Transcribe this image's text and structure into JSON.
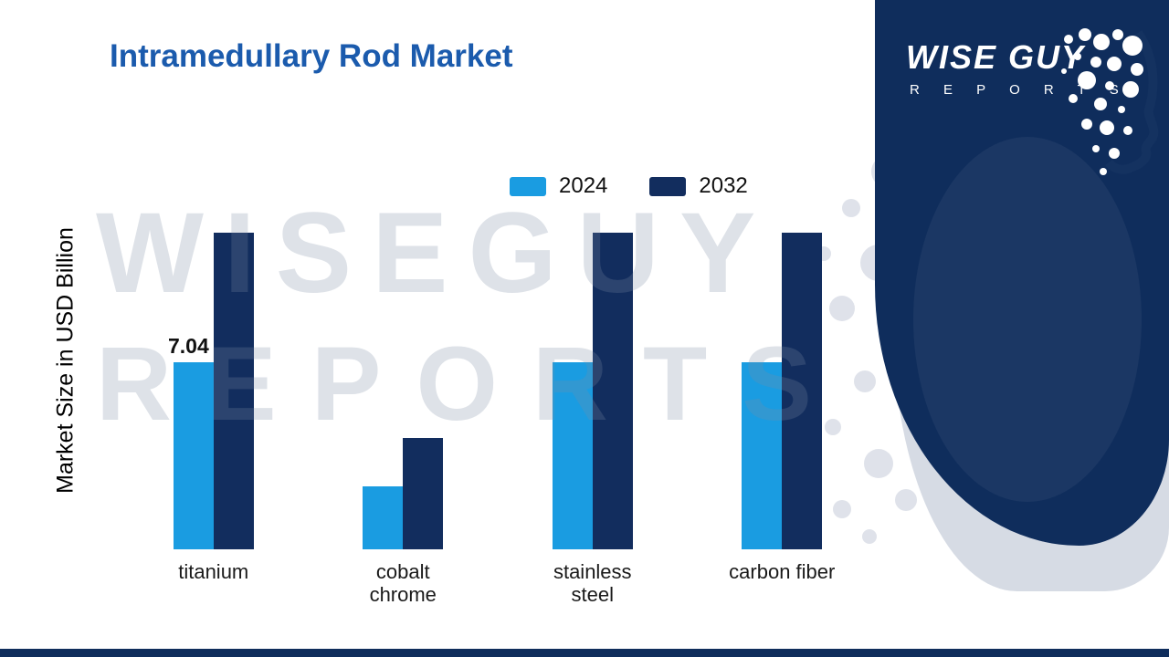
{
  "title": "Intramedullary Rod Market",
  "colors": {
    "title_blue": "#1b5bad",
    "navy": "#0f2d5c",
    "light_blue": "#1a9ce1"
  },
  "logo": {
    "line1": "WISE GUY",
    "line2": "R E P O R T S"
  },
  "watermark": {
    "line1": "WISEGUY",
    "line2": "REPORTS"
  },
  "chart_data": {
    "type": "bar",
    "title": "Intramedullary Rod Market",
    "xlabel": "",
    "ylabel": "Market Size in USD Billion",
    "categories": [
      "titanium",
      "cobalt chrome",
      "stainless steel",
      "carbon fiber"
    ],
    "series": [
      {
        "name": "2024",
        "color": "#1a9ce1",
        "values": [
          7.04,
          2.36,
          7.04,
          7.04
        ]
      },
      {
        "name": "2032",
        "color": "#122d5e",
        "values": [
          11.89,
          4.17,
          11.89,
          11.89
        ]
      }
    ],
    "ylim": [
      0,
      12
    ],
    "grid": false,
    "legend_position": "top",
    "value_labels": [
      {
        "series": "2024",
        "category": "titanium",
        "text": "7.04"
      }
    ]
  }
}
